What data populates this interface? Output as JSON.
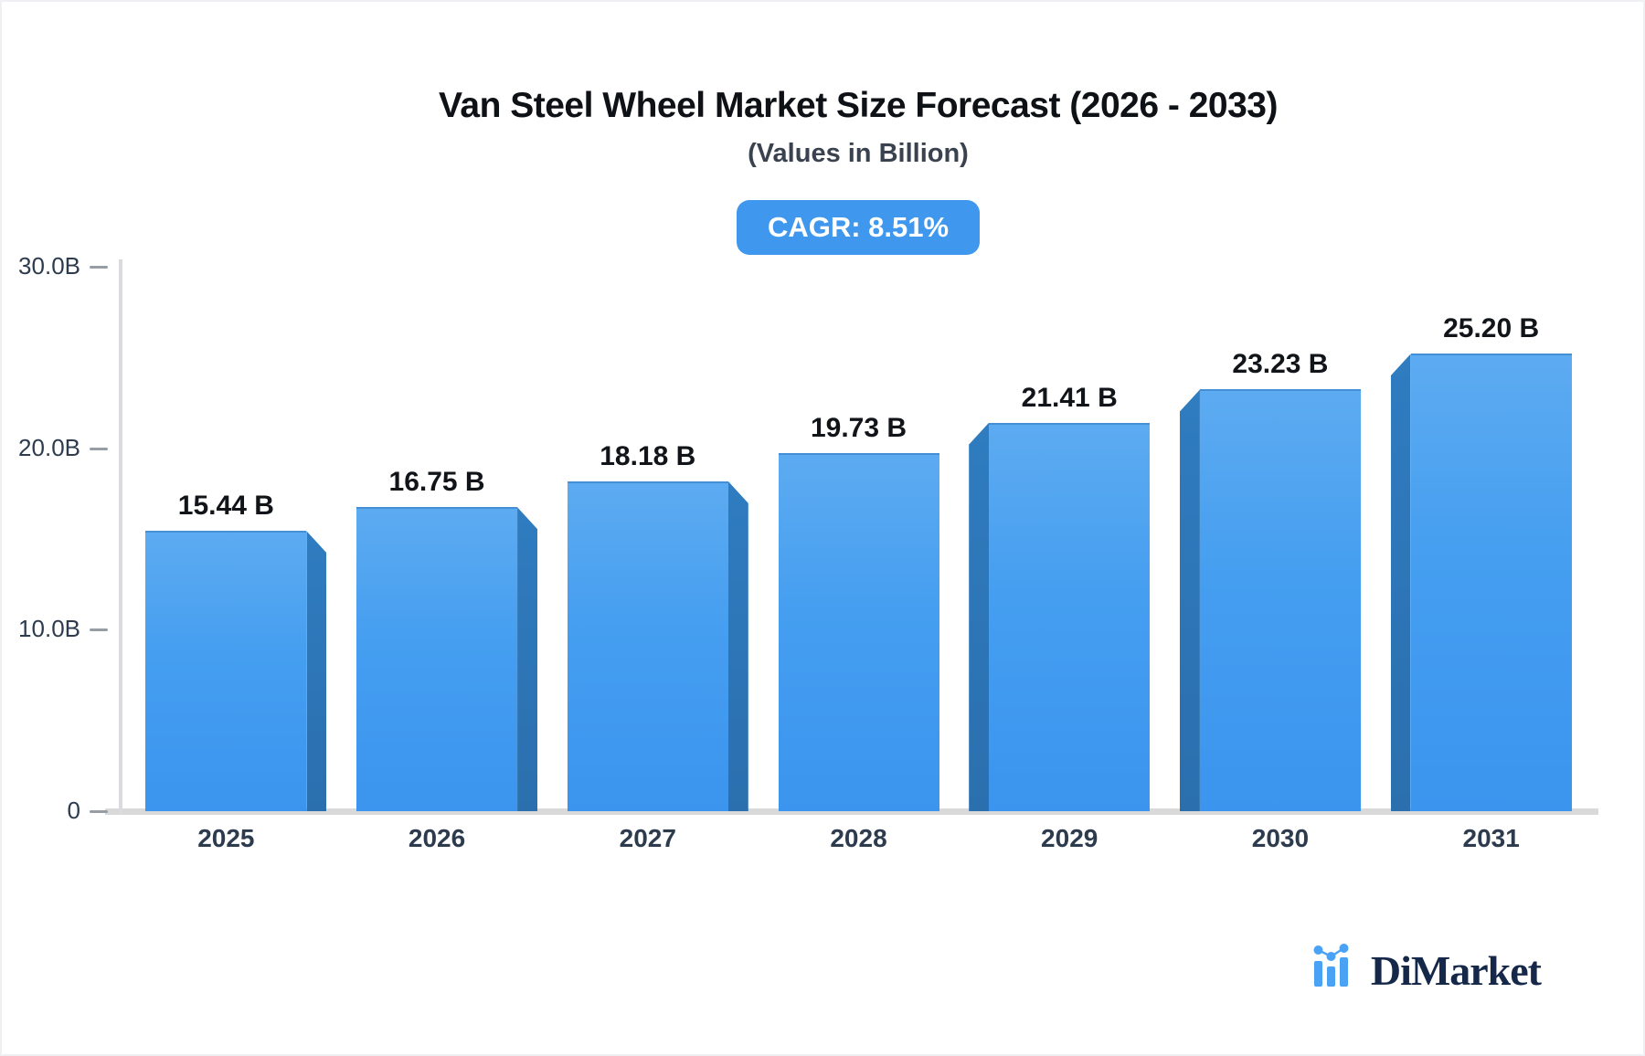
{
  "header": {
    "title": "Van Steel Wheel Market Size Forecast (2026 - 2033)",
    "subtitle": "(Values in Billion)",
    "cagr_badge": "CAGR: 8.51%"
  },
  "chart_data": {
    "type": "bar",
    "title": "Van Steel Wheel Market Size Forecast (2026 - 2033)",
    "subtitle": "(Values in Billion)",
    "annotation": "CAGR: 8.51%",
    "categories": [
      "2025",
      "2026",
      "2027",
      "2028",
      "2029",
      "2030",
      "2031"
    ],
    "values": [
      15.44,
      16.75,
      18.18,
      19.73,
      21.41,
      23.23,
      25.2
    ],
    "bar_labels": [
      "15.44 B",
      "16.75 B",
      "18.18 B",
      "19.73 B",
      "21.41 B",
      "23.23 B",
      "25.20 B"
    ],
    "y_ticks": [
      {
        "label": "30.0B",
        "value": 30
      },
      {
        "label": "20.0B",
        "value": 20
      },
      {
        "label": "10.0B",
        "value": 10
      },
      {
        "label": "0",
        "value": 0
      }
    ],
    "ylim": [
      0,
      30
    ],
    "xlabel": "",
    "ylabel": "",
    "grid": false,
    "legend": false,
    "bar_style": "3d-beveled, bevel faces away from center",
    "colors": {
      "bar_top": "#5dabf1",
      "bar_mid": "#459ef0",
      "bar_bottom": "#3b95ee",
      "bar_side_top": "#2f7cc0",
      "bar_side_bottom": "#2b6fae",
      "badge_bg": "#3f98ee",
      "badge_text": "#ffffff",
      "title_text": "#0e1116",
      "subtitle_text": "#3a4250",
      "axis_text": "#2d3b4e",
      "value_text": "#111418",
      "axis_line": "#d9dbdf",
      "tick_dash": "#979da5"
    }
  },
  "footer": {
    "brand": "DiMarket",
    "brand_color": "#15284a",
    "icon_color": "#4aa2f4"
  }
}
